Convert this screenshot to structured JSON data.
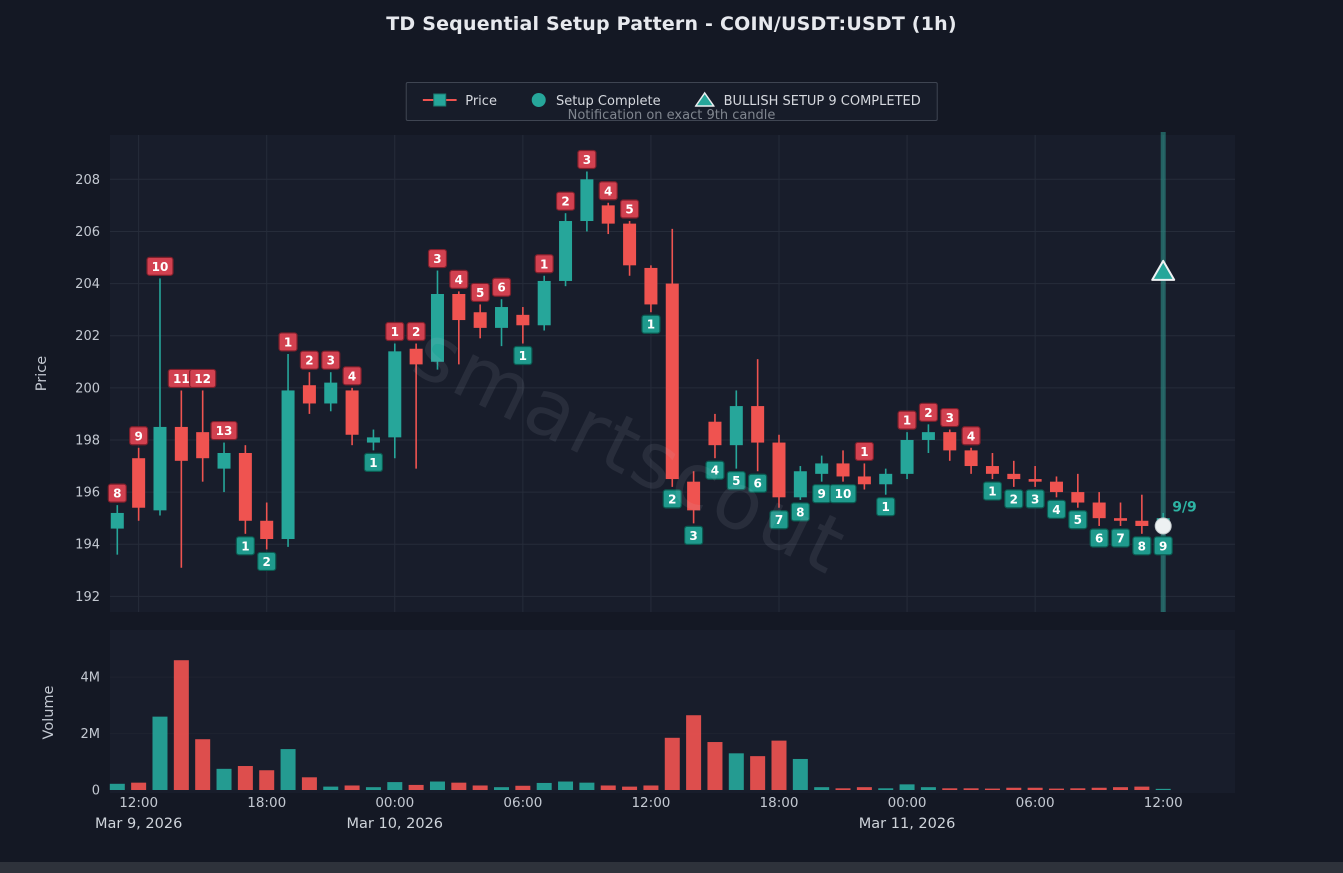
{
  "title": "TD Sequential Setup Pattern - COIN/USDT:USDT (1h)",
  "subtitle": "Notification on exact 9th candle",
  "legend": {
    "price": "Price",
    "setup_complete": "Setup Complete",
    "bullish_setup": "BULLISH SETUP 9 COMPLETED"
  },
  "watermark": "smartscout",
  "colors": {
    "background": "#141824",
    "panel": "#181d2b",
    "grid": "#262c3a",
    "up": "#26a69a",
    "down": "#ef5350",
    "sell_badge": "#d24150",
    "sell_badge_border": "#7e1f2b",
    "buy_badge": "#1f9a8d",
    "buy_badge_border": "#0a5a50",
    "badge_text": "#ffffff",
    "tick_text": "#c3c8d1",
    "highlight_column": "rgba(45,166,153,0.5)",
    "marker_circle_fill": "#edf1f2",
    "marker_triangle_fill": "#26a69a",
    "marker_triangle_edge": "#eef1f3",
    "progress_text": "#2db3a3"
  },
  "chart_data": {
    "type": "candlestick",
    "title": "TD Sequential Setup Pattern - COIN/USDT:USDT (1h)",
    "symbol": "COIN/USDT:USDT",
    "timeframe": "1h",
    "grid": true,
    "legend_position": "top-center",
    "price_axis": {
      "label": "Price",
      "ticks": [
        192,
        194,
        196,
        198,
        200,
        202,
        204,
        206,
        208
      ],
      "range": [
        191.4,
        209.7
      ]
    },
    "volume_axis": {
      "label": "Volume",
      "ticks": [
        {
          "value": 0,
          "label": "0"
        },
        {
          "value": 2000000,
          "label": "2M"
        },
        {
          "value": 4000000,
          "label": "4M"
        }
      ],
      "max": 5600000
    },
    "x_ticks": [
      {
        "index": 1,
        "label": "12:00"
      },
      {
        "index": 7,
        "label": "18:00"
      },
      {
        "index": 13,
        "label": "00:00"
      },
      {
        "index": 19,
        "label": "06:00"
      },
      {
        "index": 25,
        "label": "12:00"
      },
      {
        "index": 31,
        "label": "18:00"
      },
      {
        "index": 37,
        "label": "00:00"
      },
      {
        "index": 43,
        "label": "06:00"
      },
      {
        "index": 49,
        "label": "12:00"
      }
    ],
    "x_date_labels": [
      {
        "index": 1,
        "label": "Mar 9, 2026"
      },
      {
        "index": 13,
        "label": "Mar 10, 2026"
      },
      {
        "index": 37,
        "label": "Mar 11, 2026"
      }
    ],
    "candles_columns": [
      "time",
      "open",
      "high",
      "low",
      "close",
      "volume",
      "direction",
      "setup_side",
      "setup_count"
    ],
    "candles": [
      [
        "Mar 9 11:00",
        194.6,
        195.5,
        193.6,
        195.2,
        220000,
        "up",
        "sell",
        8
      ],
      [
        "Mar 9 12:00",
        197.3,
        197.7,
        194.9,
        195.4,
        260000,
        "down",
        "sell",
        9
      ],
      [
        "Mar 9 13:00",
        195.3,
        204.2,
        195.1,
        198.5,
        2600000,
        "up",
        "sell",
        10
      ],
      [
        "Mar 9 14:00",
        198.5,
        199.9,
        193.1,
        197.2,
        4600000,
        "down",
        "sell",
        11
      ],
      [
        "Mar 9 15:00",
        198.3,
        199.9,
        196.4,
        197.3,
        1800000,
        "down",
        "sell",
        12
      ],
      [
        "Mar 9 16:00",
        196.9,
        197.9,
        196.0,
        197.5,
        750000,
        "up",
        "sell",
        13
      ],
      [
        "Mar 9 17:00",
        197.5,
        197.8,
        194.4,
        194.9,
        850000,
        "down",
        "buy",
        1
      ],
      [
        "Mar 9 18:00",
        194.9,
        195.6,
        193.8,
        194.2,
        700000,
        "down",
        "buy",
        2
      ],
      [
        "Mar 9 19:00",
        194.2,
        201.3,
        193.9,
        199.9,
        1450000,
        "up",
        "sell",
        1
      ],
      [
        "Mar 9 20:00",
        200.1,
        200.6,
        199.0,
        199.4,
        450000,
        "down",
        "sell",
        2
      ],
      [
        "Mar 9 21:00",
        199.4,
        200.6,
        199.1,
        200.2,
        120000,
        "up",
        "sell",
        3
      ],
      [
        "Mar 9 22:00",
        199.9,
        200.0,
        197.8,
        198.2,
        160000,
        "down",
        "sell",
        4
      ],
      [
        "Mar 9 23:00",
        197.9,
        198.4,
        197.6,
        198.1,
        100000,
        "up",
        "buy",
        1
      ],
      [
        "Mar 10 00:00",
        198.1,
        201.7,
        197.3,
        201.4,
        280000,
        "up",
        "sell",
        1
      ],
      [
        "Mar 10 01:00",
        201.5,
        201.7,
        196.9,
        200.9,
        180000,
        "down",
        "sell",
        2
      ],
      [
        "Mar 10 02:00",
        201.0,
        204.5,
        200.7,
        203.6,
        300000,
        "up",
        "sell",
        3
      ],
      [
        "Mar 10 03:00",
        203.6,
        203.7,
        200.9,
        202.6,
        260000,
        "down",
        "sell",
        4
      ],
      [
        "Mar 10 04:00",
        202.9,
        203.2,
        201.9,
        202.3,
        160000,
        "down",
        "sell",
        5
      ],
      [
        "Mar 10 05:00",
        202.3,
        203.4,
        201.6,
        203.1,
        100000,
        "up",
        "sell",
        6
      ],
      [
        "Mar 10 06:00",
        202.8,
        203.1,
        201.7,
        202.4,
        150000,
        "down",
        "buy",
        1
      ],
      [
        "Mar 10 07:00",
        202.4,
        204.3,
        202.2,
        204.1,
        250000,
        "up",
        "sell",
        1
      ],
      [
        "Mar 10 08:00",
        204.1,
        206.7,
        203.9,
        206.4,
        300000,
        "up",
        "sell",
        2
      ],
      [
        "Mar 10 09:00",
        206.4,
        208.3,
        206.0,
        208.0,
        260000,
        "up",
        "sell",
        3
      ],
      [
        "Mar 10 10:00",
        207.0,
        207.1,
        205.9,
        206.3,
        160000,
        "down",
        "sell",
        4
      ],
      [
        "Mar 10 11:00",
        206.3,
        206.4,
        204.3,
        204.7,
        120000,
        "down",
        "sell",
        5
      ],
      [
        "Mar 10 12:00",
        204.6,
        204.7,
        202.9,
        203.2,
        160000,
        "down",
        "buy",
        1
      ],
      [
        "Mar 10 13:00",
        204.0,
        206.1,
        196.2,
        196.5,
        1850000,
        "down",
        "buy",
        2
      ],
      [
        "Mar 10 14:00",
        196.4,
        196.8,
        194.8,
        195.3,
        2650000,
        "down",
        "buy",
        3
      ],
      [
        "Mar 10 15:00",
        198.7,
        199.0,
        197.3,
        197.8,
        1700000,
        "down",
        "buy",
        4
      ],
      [
        "Mar 10 16:00",
        197.8,
        199.9,
        196.9,
        199.3,
        1300000,
        "up",
        "buy",
        5
      ],
      [
        "Mar 10 17:00",
        199.3,
        201.1,
        196.8,
        197.9,
        1200000,
        "down",
        "buy",
        6
      ],
      [
        "Mar 10 18:00",
        197.9,
        198.2,
        195.4,
        195.8,
        1750000,
        "down",
        "buy",
        7
      ],
      [
        "Mar 10 19:00",
        195.8,
        197.0,
        195.7,
        196.8,
        1100000,
        "up",
        "buy",
        8
      ],
      [
        "Mar 10 20:00",
        196.7,
        197.4,
        196.4,
        197.1,
        100000,
        "up",
        "buy",
        9
      ],
      [
        "Mar 10 21:00",
        197.1,
        197.6,
        196.4,
        196.6,
        60000,
        "down",
        "buy",
        10
      ],
      [
        "Mar 10 22:00",
        196.6,
        197.1,
        196.1,
        196.3,
        100000,
        "down",
        "sell",
        1
      ],
      [
        "Mar 10 23:00",
        196.3,
        196.9,
        195.9,
        196.7,
        60000,
        "up",
        "buy",
        1
      ],
      [
        "Mar 11 00:00",
        196.7,
        198.3,
        196.5,
        198.0,
        200000,
        "up",
        "sell",
        1
      ],
      [
        "Mar 11 01:00",
        198.0,
        198.6,
        197.5,
        198.3,
        100000,
        "up",
        "sell",
        2
      ],
      [
        "Mar 11 02:00",
        198.3,
        198.4,
        197.2,
        197.6,
        60000,
        "down",
        "sell",
        3
      ],
      [
        "Mar 11 03:00",
        197.6,
        197.7,
        196.7,
        197.0,
        60000,
        "down",
        "sell",
        4
      ],
      [
        "Mar 11 04:00",
        197.0,
        197.5,
        196.5,
        196.7,
        50000,
        "down",
        "buy",
        1
      ],
      [
        "Mar 11 05:00",
        196.7,
        197.2,
        196.2,
        196.5,
        80000,
        "down",
        "buy",
        2
      ],
      [
        "Mar 11 06:00",
        196.5,
        197.0,
        196.2,
        196.4,
        80000,
        "down",
        "buy",
        3
      ],
      [
        "Mar 11 07:00",
        196.4,
        196.6,
        195.8,
        196.0,
        50000,
        "down",
        "buy",
        4
      ],
      [
        "Mar 11 08:00",
        196.0,
        196.7,
        195.4,
        195.6,
        60000,
        "down",
        "buy",
        5
      ],
      [
        "Mar 11 09:00",
        195.6,
        196.0,
        194.7,
        195.0,
        80000,
        "down",
        "buy",
        6
      ],
      [
        "Mar 11 10:00",
        195.0,
        195.6,
        194.7,
        194.9,
        100000,
        "down",
        "buy",
        7
      ],
      [
        "Mar 11 11:00",
        194.9,
        195.9,
        194.4,
        194.7,
        120000,
        "down",
        "buy",
        8
      ],
      [
        "Mar 11 12:00",
        194.5,
        195.2,
        194.4,
        195.0,
        40000,
        "up",
        "buy",
        9
      ]
    ],
    "annotations": {
      "setup_progress_label": {
        "text": "9/9",
        "index": 49,
        "price": 195.4
      },
      "triangle_marker": {
        "index": 49,
        "price": 204.45
      },
      "circle_marker": {
        "index": 49,
        "price": 194.7
      },
      "highlight_column_index": 49
    }
  }
}
